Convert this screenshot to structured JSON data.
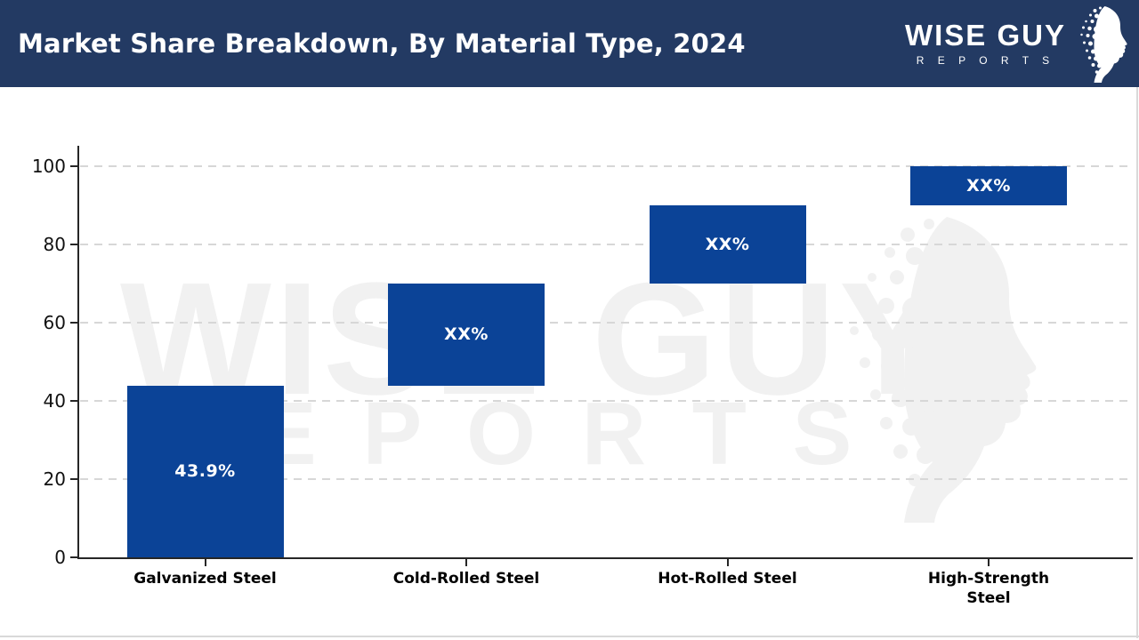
{
  "header": {
    "title": "Market Share Breakdown, By Material Type, 2024",
    "logo": {
      "name": "WISE GUY",
      "subtitle": "R E P O R T S"
    }
  },
  "watermark": {
    "name": "WISE GUY",
    "subtitle": "R E P O R T S"
  },
  "chart_data": {
    "type": "bar",
    "subtype": "waterfall",
    "title": "Market Share Breakdown, By Material Type, 2024",
    "categories": [
      "Galvanized Steel",
      "Cold-Rolled Steel",
      "Hot-Rolled Steel",
      "High-Strength Steel"
    ],
    "series": [
      {
        "name": "Market share cumulative (%)",
        "segments": [
          {
            "category": "Galvanized Steel",
            "start": 0,
            "end": 43.9,
            "label": "43.9%"
          },
          {
            "category": "Cold-Rolled Steel",
            "start": 43.9,
            "end": 70,
            "label": "XX%"
          },
          {
            "category": "Hot-Rolled Steel",
            "start": 70,
            "end": 90,
            "label": "XX%"
          },
          {
            "category": "High-Strength Steel",
            "start": 90,
            "end": 100,
            "label": "XX%"
          }
        ]
      }
    ],
    "xlabel": "",
    "ylabel": "",
    "ylim": [
      0,
      100
    ],
    "yticks": [
      0,
      20,
      40,
      60,
      80,
      100
    ],
    "grid": "horizontal dashed",
    "legend": "none",
    "bar_color": "#0b4397",
    "label_color": "#ffffff"
  },
  "colors": {
    "header_bg": "#233a63",
    "bar": "#0b4397",
    "grid": "#d7d7d7",
    "axis": "#262626",
    "watermark": "#f1f1f1"
  }
}
